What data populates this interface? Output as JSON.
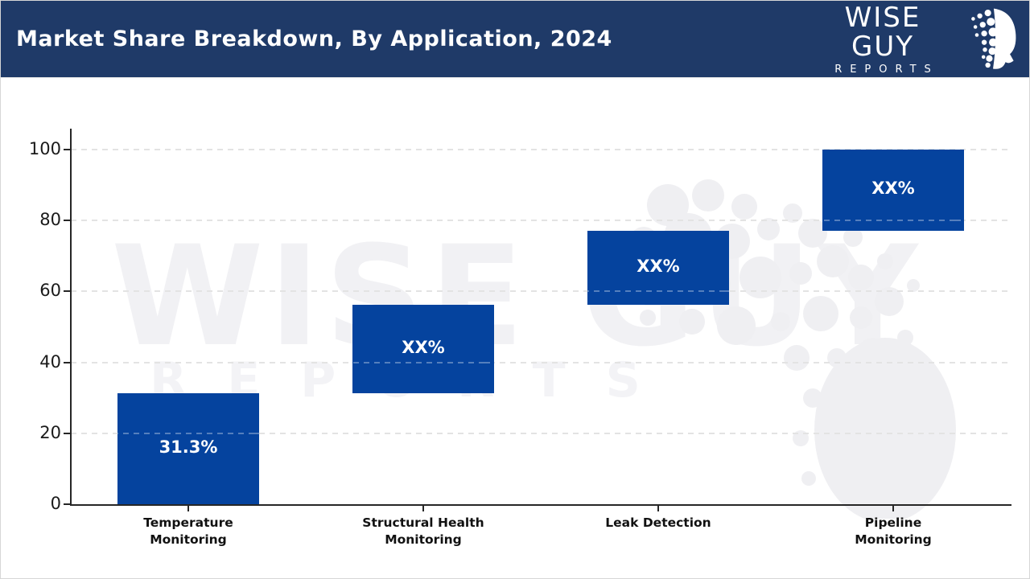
{
  "header": {
    "title": "Market Share Breakdown, By Application, 2024",
    "logo": {
      "brand_line1": "WISE GUY",
      "brand_line2": "REPORTS"
    }
  },
  "watermark": {
    "line1": "WISE GUY",
    "line2": "REPORTS"
  },
  "icons": {
    "logo_face": "face-profile-dots-icon",
    "watermark_face": "dot-pattern-face-icon"
  },
  "chart_data": {
    "type": "bar",
    "variant": "waterfall",
    "title": "Market Share Breakdown, By Application, 2024",
    "categories": [
      {
        "label": "Temperature Monitoring",
        "lines": [
          "Temperature",
          "Monitoring"
        ]
      },
      {
        "label": "Structural Health Monitoring",
        "lines": [
          "Structural Health",
          "Monitoring"
        ]
      },
      {
        "label": "Leak Detection",
        "lines": [
          "Leak Detection"
        ]
      },
      {
        "label": "Pipeline Monitoring",
        "lines": [
          "Pipeline",
          "Monitoring"
        ]
      }
    ],
    "bars": [
      {
        "start": 0,
        "end": 31.3,
        "label": "31.3%"
      },
      {
        "start": 31.3,
        "end": 56.2,
        "label": "XX%"
      },
      {
        "start": 56.2,
        "end": 77.2,
        "label": "XX%"
      },
      {
        "start": 77.2,
        "end": 100,
        "label": "XX%"
      }
    ],
    "yticks": [
      0,
      20,
      40,
      60,
      80,
      100
    ],
    "ylim": [
      0,
      105
    ],
    "grid": "horizontal-dashed",
    "legend": "none",
    "colors": {
      "bar": "#05439e",
      "bar_label": "#ffffff",
      "header_bg": "#1f3a68",
      "axis": "#262626",
      "grid": "#e3e3e3",
      "tick_label": "#1a1a1a"
    }
  }
}
